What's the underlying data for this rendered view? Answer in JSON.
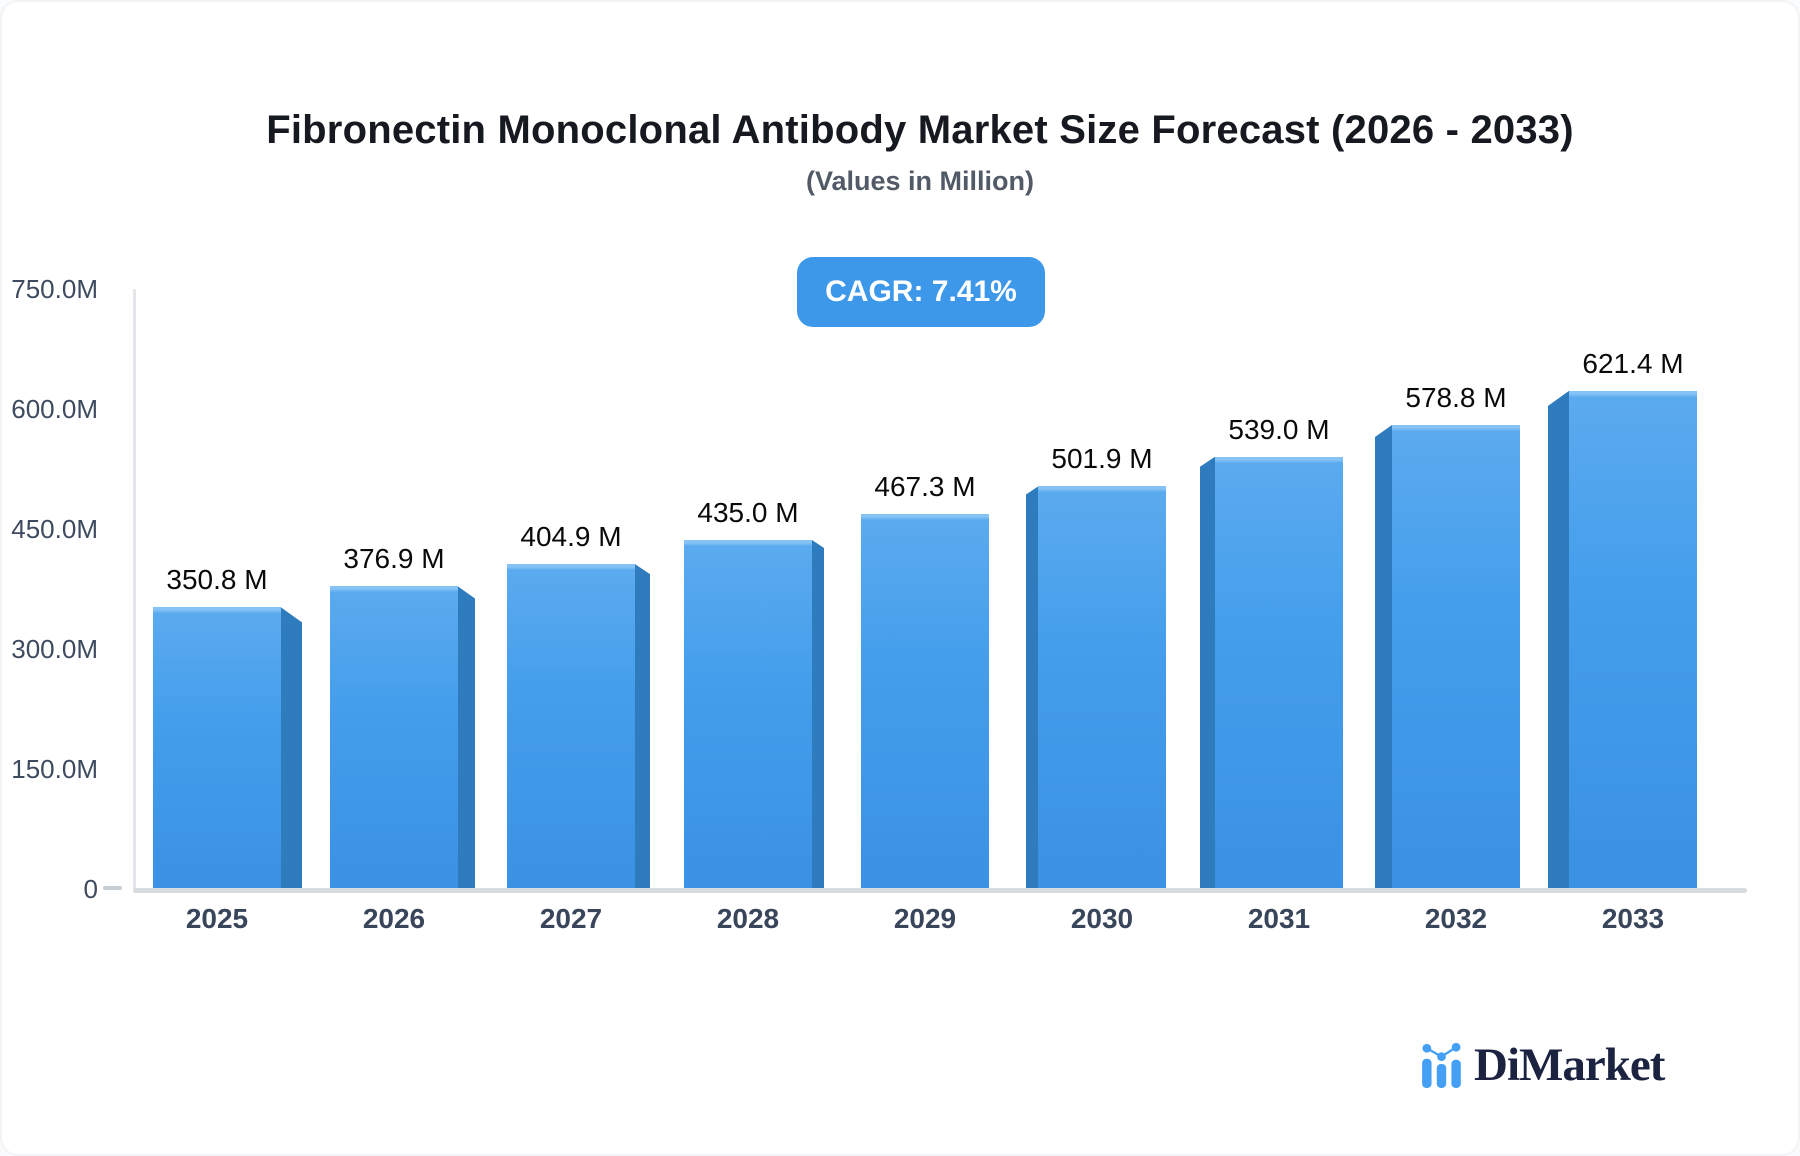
{
  "header": {
    "title": "Fibronectin Monoclonal Antibody Market Size Forecast (2026 - 2033)",
    "subtitle": "(Values in Million)",
    "cagr_label": "CAGR: 7.41%"
  },
  "chart_data": {
    "type": "bar",
    "title": "Fibronectin Monoclonal Antibody Market Size Forecast (2026 - 2033)",
    "subtitle": "(Values in Million)",
    "cagr_label": "CAGR: 7.41%",
    "categories": [
      "2025",
      "2026",
      "2027",
      "2028",
      "2029",
      "2030",
      "2031",
      "2032",
      "2033"
    ],
    "values": [
      350.8,
      376.9,
      404.9,
      435.0,
      467.3,
      501.9,
      539.0,
      578.8,
      621.4
    ],
    "value_labels": [
      "350.8 M",
      "376.9 M",
      "404.9 M",
      "435.0 M",
      "467.3 M",
      "501.9 M",
      "539.0 M",
      "578.8 M",
      "621.4 M"
    ],
    "unit": "Million",
    "xlabel": "",
    "ylabel": "",
    "ylim": [
      0,
      750
    ],
    "yticks": [
      {
        "label": "0",
        "value": 0
      },
      {
        "label": "150.0M",
        "value": 150
      },
      {
        "label": "300.0M",
        "value": 300
      },
      {
        "label": "450.0M",
        "value": 450
      },
      {
        "label": "600.0M",
        "value": 600
      },
      {
        "label": "750.0M",
        "value": 750
      }
    ],
    "grid": false,
    "legend": false,
    "bar_style": "3d-perspective-center-vanishing"
  },
  "branding": {
    "name": "DiMarket",
    "icon": "bar-chart-with-trend-dots-icon"
  },
  "colors": {
    "badge_bg": "#3D98EA",
    "badge_text": "#FFFFFF",
    "bar_top_highlight": "#85C2F5",
    "bar_face_light": "#5BAAEF",
    "bar_face": "#449EEB",
    "bar_face_dark": "#3B91E4",
    "bar_side": "#2E7CBD",
    "baseline": "#D8DBDF",
    "axis_line": "#E4E6EA",
    "title_text": "#16191F",
    "subtitle_text": "#515A66",
    "ytick_text": "#3E4A5E",
    "category_text": "#39455A",
    "value_text": "#0A0A0A",
    "logo_blue": "#45A0F5",
    "logo_text": "#1B2340"
  }
}
